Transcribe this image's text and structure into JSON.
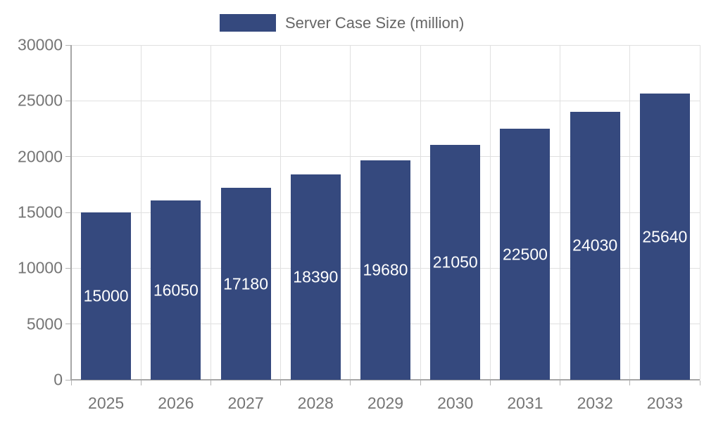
{
  "legend": {
    "label": "Server Case Size (million)",
    "swatch_color": "#35497e"
  },
  "chart_data": {
    "type": "bar",
    "title": "Server Case Size (million)",
    "series_name": "Server Case Size (million)",
    "categories": [
      "2025",
      "2026",
      "2027",
      "2028",
      "2029",
      "2030",
      "2031",
      "2032",
      "2033"
    ],
    "values": [
      15000,
      16050,
      17180,
      18390,
      19680,
      21050,
      22500,
      24030,
      25640
    ],
    "value_labels": [
      "15000",
      "16050",
      "17180",
      "18390",
      "19680",
      "21050",
      "22500",
      "24030",
      "25640"
    ],
    "xlabel": "",
    "ylabel": "",
    "ylim": [
      0,
      30000
    ],
    "yticks": [
      0,
      5000,
      10000,
      15000,
      20000,
      25000,
      30000
    ],
    "ytick_labels": [
      "0",
      "5000",
      "10000",
      "15000",
      "20000",
      "25000",
      "30000"
    ],
    "grid": true,
    "legend_position": "top-center",
    "colors": {
      "bar": "#35497e",
      "value_label": "#ffffff",
      "axis_label": "#757575",
      "legend_label": "#666666",
      "gridline": "#e0e0e0",
      "axis_line": "#a6a6a6",
      "tick": "#b3b3b3",
      "background": "#ffffff"
    }
  }
}
